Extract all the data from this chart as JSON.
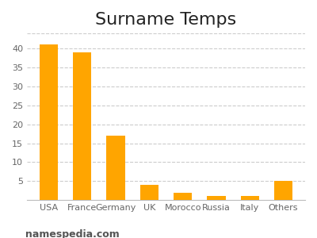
{
  "title": "Surname Temps",
  "categories": [
    "USA",
    "France",
    "Germany",
    "UK",
    "Morocco",
    "Russia",
    "Italy",
    "Others"
  ],
  "values": [
    41,
    39,
    17,
    4,
    2,
    1,
    1,
    5
  ],
  "bar_color": "#FFA500",
  "ylim": [
    0,
    44
  ],
  "ytick_values": [
    5,
    10,
    15,
    20,
    25,
    30,
    35,
    40
  ],
  "background_color": "#ffffff",
  "title_fontsize": 16,
  "tick_fontsize": 8,
  "footer_text": "namespedia.com",
  "footer_fontsize": 9,
  "grid_color": "#cccccc",
  "bar_width": 0.55
}
